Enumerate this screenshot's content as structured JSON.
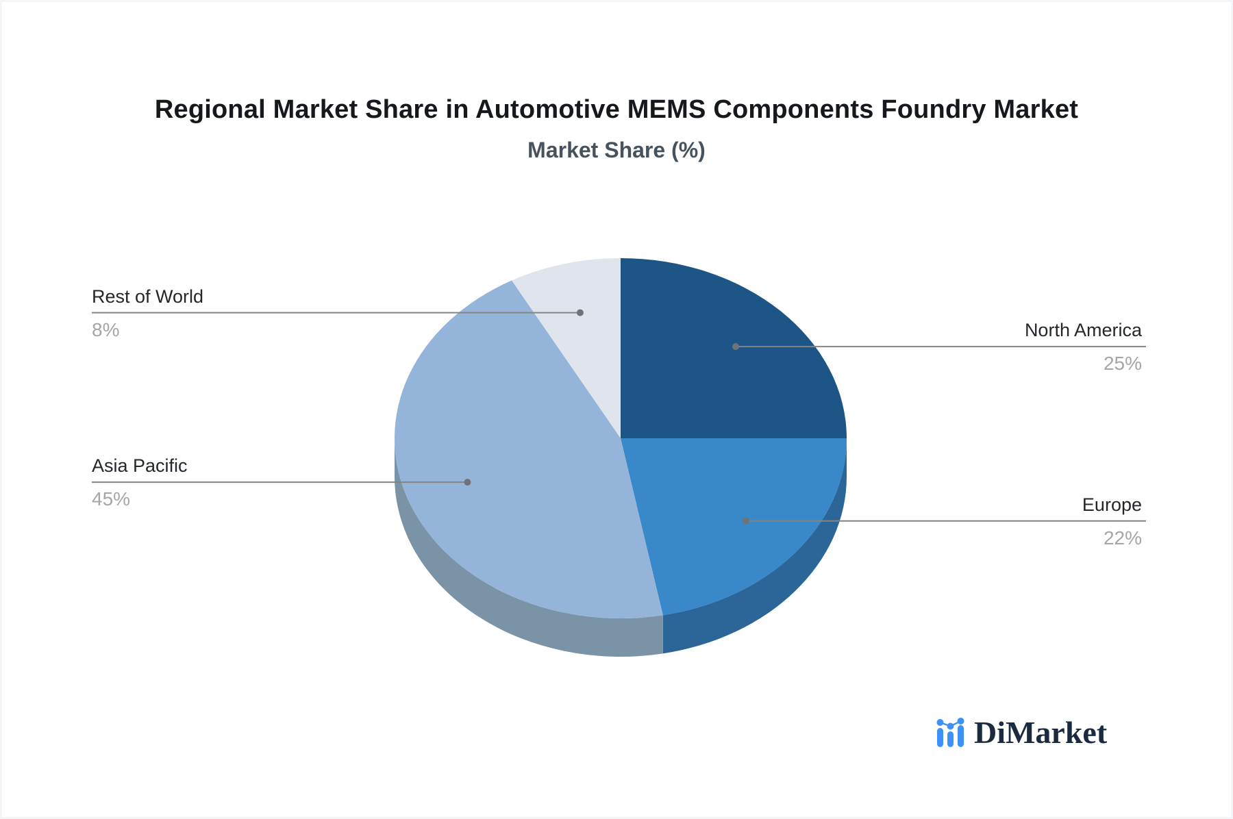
{
  "chart_data": {
    "type": "pie",
    "style": "3d",
    "title": "Regional Market Share in Automotive MEMS Components Foundry Market",
    "subtitle": "Market Share (%)",
    "unit": "%",
    "start_angle_deg": 0,
    "direction": "clockwise",
    "legend_position": "callout-labels",
    "segments": [
      {
        "label": "North America",
        "value": 25,
        "display_value": "25%",
        "color": "#1d5586"
      },
      {
        "label": "Europe",
        "value": 22,
        "display_value": "22%",
        "color": "#3888ca",
        "side_color": "#2c6698"
      },
      {
        "label": "Asia Pacific",
        "value": 45,
        "display_value": "45%",
        "color": "#94b5d9",
        "side_color": "#7a93a7"
      },
      {
        "label": "Rest of World",
        "value": 8,
        "display_value": "8%",
        "color": "#dfe4ed"
      }
    ],
    "label_color": "#23272b",
    "value_color": "#a6a6a6",
    "leader_line_color": "#848484",
    "leader_dot_color": "#6f7276"
  },
  "branding": {
    "logo_text": "DiMarket",
    "logo_blue": "#3e92f7",
    "logo_navy": "#1a2b3f"
  },
  "page": {
    "background": "#ffffff",
    "border_color": "#f3f5f7"
  }
}
